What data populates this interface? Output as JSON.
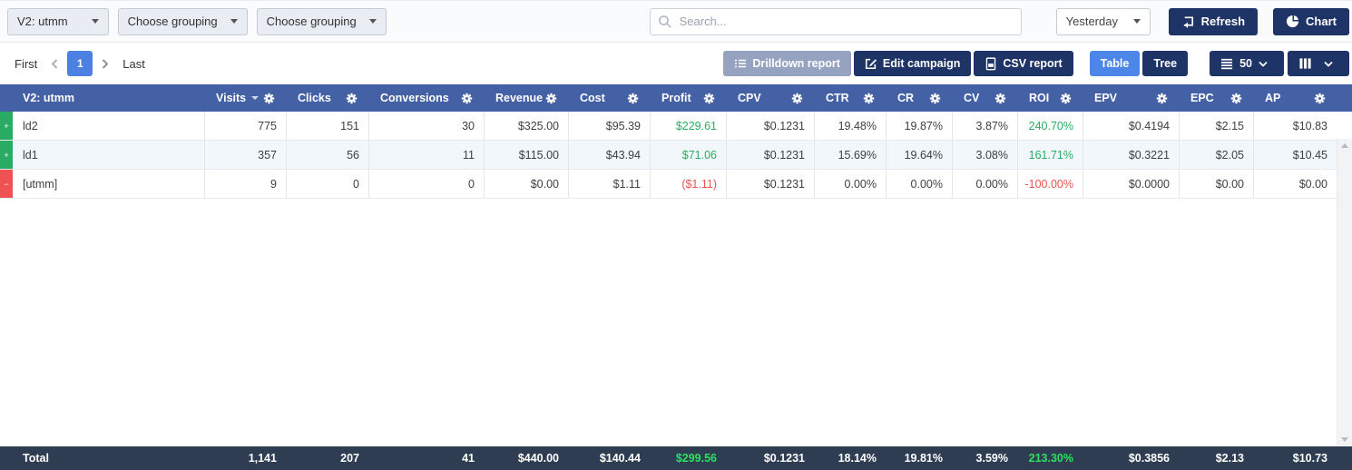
{
  "toolbar": {
    "grouping_primary": "V2: utmm",
    "grouping_placeholder_1": "Choose grouping",
    "grouping_placeholder_2": "Choose grouping",
    "search_placeholder": "Search...",
    "date_range": "Yesterday",
    "refresh_label": "Refresh",
    "chart_label": "Chart"
  },
  "pagination": {
    "first": "First",
    "current_page": "1",
    "last": "Last"
  },
  "actions": {
    "drilldown_label": "Drilldown report",
    "edit_campaign_label": "Edit campaign",
    "csv_label": "CSV report",
    "view_table_label": "Table",
    "view_tree_label": "Tree",
    "rows_per_page": "50"
  },
  "table": {
    "columns": [
      {
        "label": "V2: utmm",
        "gear": false
      },
      {
        "label": "Visits",
        "gear": true,
        "sorted": "desc"
      },
      {
        "label": "Clicks",
        "gear": true
      },
      {
        "label": "Conversions",
        "gear": true
      },
      {
        "label": "Revenue",
        "gear": true
      },
      {
        "label": "Cost",
        "gear": true
      },
      {
        "label": "Profit",
        "gear": true
      },
      {
        "label": "CPV",
        "gear": true
      },
      {
        "label": "CTR",
        "gear": true
      },
      {
        "label": "CR",
        "gear": true
      },
      {
        "label": "CV",
        "gear": true
      },
      {
        "label": "ROI",
        "gear": true
      },
      {
        "label": "EPV",
        "gear": true
      },
      {
        "label": "EPC",
        "gear": true
      },
      {
        "label": "AP",
        "gear": true
      }
    ],
    "rows": [
      {
        "indicator": "positive",
        "name": "ld2",
        "cells": [
          {
            "v": "775"
          },
          {
            "v": "151"
          },
          {
            "v": "30"
          },
          {
            "v": "$325.00"
          },
          {
            "v": "$95.39"
          },
          {
            "v": "$229.61",
            "c": "pos"
          },
          {
            "v": "$0.1231"
          },
          {
            "v": "19.48%"
          },
          {
            "v": "19.87%"
          },
          {
            "v": "3.87%"
          },
          {
            "v": "240.70%",
            "c": "pos"
          },
          {
            "v": "$0.4194"
          },
          {
            "v": "$2.15"
          },
          {
            "v": "$10.83"
          }
        ]
      },
      {
        "indicator": "positive",
        "name": "ld1",
        "cells": [
          {
            "v": "357"
          },
          {
            "v": "56"
          },
          {
            "v": "11"
          },
          {
            "v": "$115.00"
          },
          {
            "v": "$43.94"
          },
          {
            "v": "$71.06",
            "c": "pos"
          },
          {
            "v": "$0.1231"
          },
          {
            "v": "15.69%"
          },
          {
            "v": "19.64%"
          },
          {
            "v": "3.08%"
          },
          {
            "v": "161.71%",
            "c": "pos"
          },
          {
            "v": "$0.3221"
          },
          {
            "v": "$2.05"
          },
          {
            "v": "$10.45"
          }
        ]
      },
      {
        "indicator": "negative",
        "name": "[utmm]",
        "cells": [
          {
            "v": "9"
          },
          {
            "v": "0"
          },
          {
            "v": "0"
          },
          {
            "v": "$0.00"
          },
          {
            "v": "$1.11"
          },
          {
            "v": "($1.11)",
            "c": "neg"
          },
          {
            "v": "$0.1231"
          },
          {
            "v": "0.00%"
          },
          {
            "v": "0.00%"
          },
          {
            "v": "0.00%"
          },
          {
            "v": "-100.00%",
            "c": "neg"
          },
          {
            "v": "$0.0000"
          },
          {
            "v": "$0.00"
          },
          {
            "v": "$0.00"
          }
        ]
      }
    ],
    "total": {
      "label": "Total",
      "cells": [
        {
          "v": "1,141"
        },
        {
          "v": "207"
        },
        {
          "v": "41"
        },
        {
          "v": "$440.00"
        },
        {
          "v": "$140.44"
        },
        {
          "v": "$299.56",
          "c": "pos"
        },
        {
          "v": "$0.1231"
        },
        {
          "v": "18.14%"
        },
        {
          "v": "19.81%"
        },
        {
          "v": "3.59%"
        },
        {
          "v": "213.30%",
          "c": "pos"
        },
        {
          "v": "$0.3856"
        },
        {
          "v": "$2.13"
        },
        {
          "v": "$10.73"
        }
      ]
    }
  },
  "colors": {
    "header_bg": "#4361a4",
    "total_bg": "#2e3d52",
    "navy_button": "#1e3466",
    "blue_button": "#4c86e9",
    "muted_button": "#96a3c0",
    "positive_text": "#27ae60",
    "negative_text": "#e8544e",
    "total_positive_text": "#2de060",
    "indicator_positive": "#2aab64",
    "indicator_negative": "#ee5253"
  }
}
